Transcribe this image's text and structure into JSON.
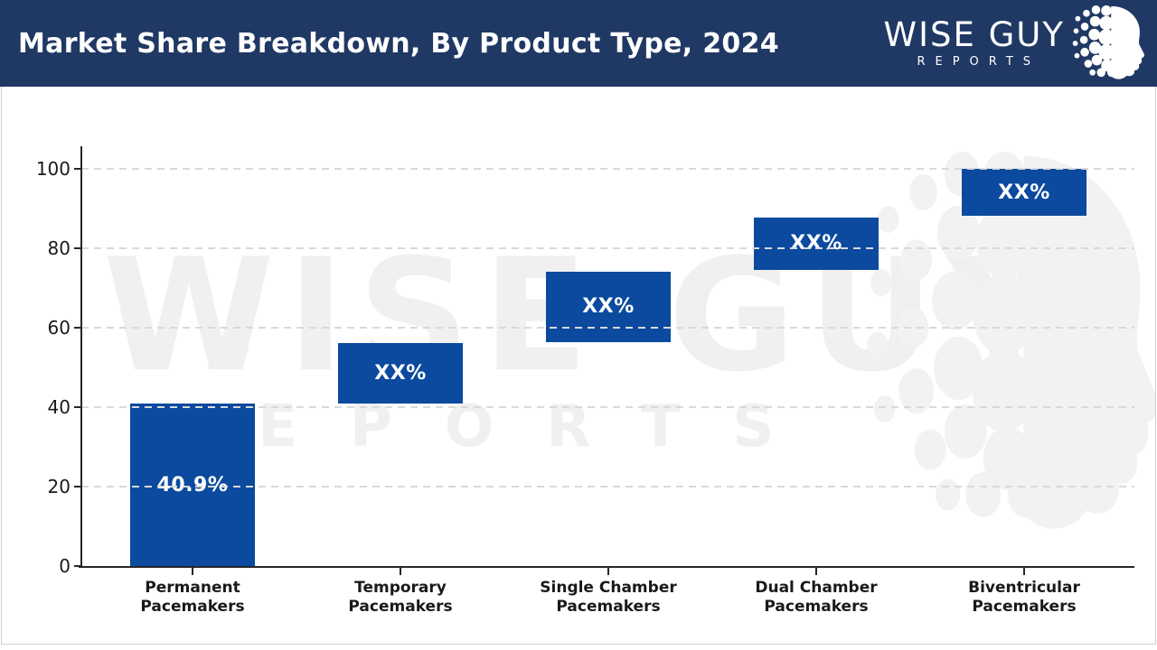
{
  "header": {
    "title": "Market Share Breakdown, By Product Type, 2024",
    "logo": {
      "line1": "WISE GUY",
      "line2": "REPORTS"
    }
  },
  "watermark": {
    "line1": "WISE GUY",
    "line2": "REPORTS"
  },
  "colors": {
    "header_bg": "#1F3864",
    "bar": "#0B4A9E",
    "bar_label": "#FFFFFF",
    "gridline": "#D9D9D9",
    "axis": "#262626",
    "text": "#1A1A1A",
    "watermark": "#F0F0F0",
    "content_border": "#CFCFCF"
  },
  "chart_data": {
    "type": "bar",
    "subtype": "waterfall",
    "title": "Market Share Breakdown, By Product Type, 2024",
    "categories": [
      [
        "Permanent",
        "Pacemakers"
      ],
      [
        "Temporary",
        "Pacemakers"
      ],
      [
        "Single Chamber",
        "Pacemakers"
      ],
      [
        "Dual Chamber",
        "Pacemakers"
      ],
      [
        "Biventricular",
        "Pacemakers"
      ]
    ],
    "segments": [
      {
        "start": 0,
        "end": 40.9,
        "label": "40.9%"
      },
      {
        "start": 40.9,
        "end": 56.2,
        "label": "XX%"
      },
      {
        "start": 56.4,
        "end": 74.2,
        "label": "XX%"
      },
      {
        "start": 74.6,
        "end": 87.8,
        "label": "XX%"
      },
      {
        "start": 88.1,
        "end": 100,
        "label": "XX%"
      }
    ],
    "xlabel": "",
    "ylabel": "",
    "yticks": [
      0,
      20,
      40,
      60,
      80,
      100
    ],
    "ylim": [
      0,
      100
    ],
    "grid": "horizontal-dashed",
    "legend": "none"
  }
}
